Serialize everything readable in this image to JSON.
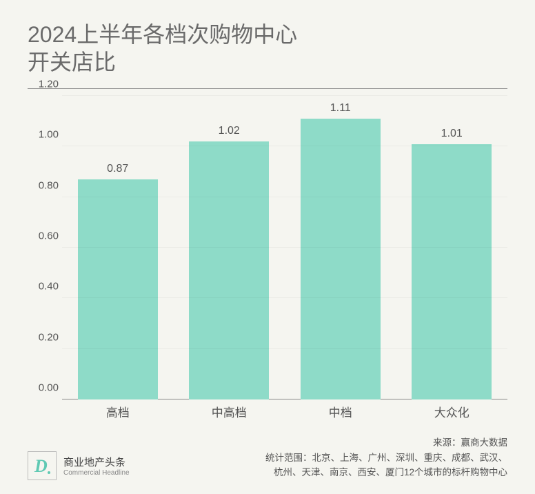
{
  "title_line1": "2024上半年各档次购物中心",
  "title_line2": "开关店比",
  "chart": {
    "type": "bar",
    "categories": [
      "高档",
      "中高档",
      "中档",
      "大众化"
    ],
    "values": [
      0.87,
      1.02,
      1.11,
      1.01
    ],
    "value_labels": [
      "0.87",
      "1.02",
      "1.11",
      "1.01"
    ],
    "ylim": [
      0.0,
      1.2
    ],
    "yticks": [
      0.0,
      0.2,
      0.4,
      0.6,
      0.8,
      1.0,
      1.2
    ],
    "ytick_labels": [
      "0.00",
      "0.20",
      "0.40",
      "0.60",
      "0.80",
      "1.00",
      "1.20"
    ],
    "bar_color": "#8edbc8",
    "background_color": "#f5f5f0",
    "axis_color": "#888888",
    "text_color": "#555555",
    "title_color": "#6a6a6a",
    "title_fontsize": 32,
    "value_fontsize": 16,
    "tick_fontsize": 15,
    "bar_width_ratio": 0.72
  },
  "footer": {
    "logo_cn": "商业地产头条",
    "logo_en": "Commercial Headline",
    "logo_letter": "D",
    "logo_color": "#5fc9b3",
    "source_line1": "来源：赢商大数据",
    "source_line2": "统计范围：北京、上海、广州、深圳、重庆、成都、武汉、",
    "source_line3": "杭州、天津、南京、西安、厦门12个城市的标杆购物中心"
  }
}
